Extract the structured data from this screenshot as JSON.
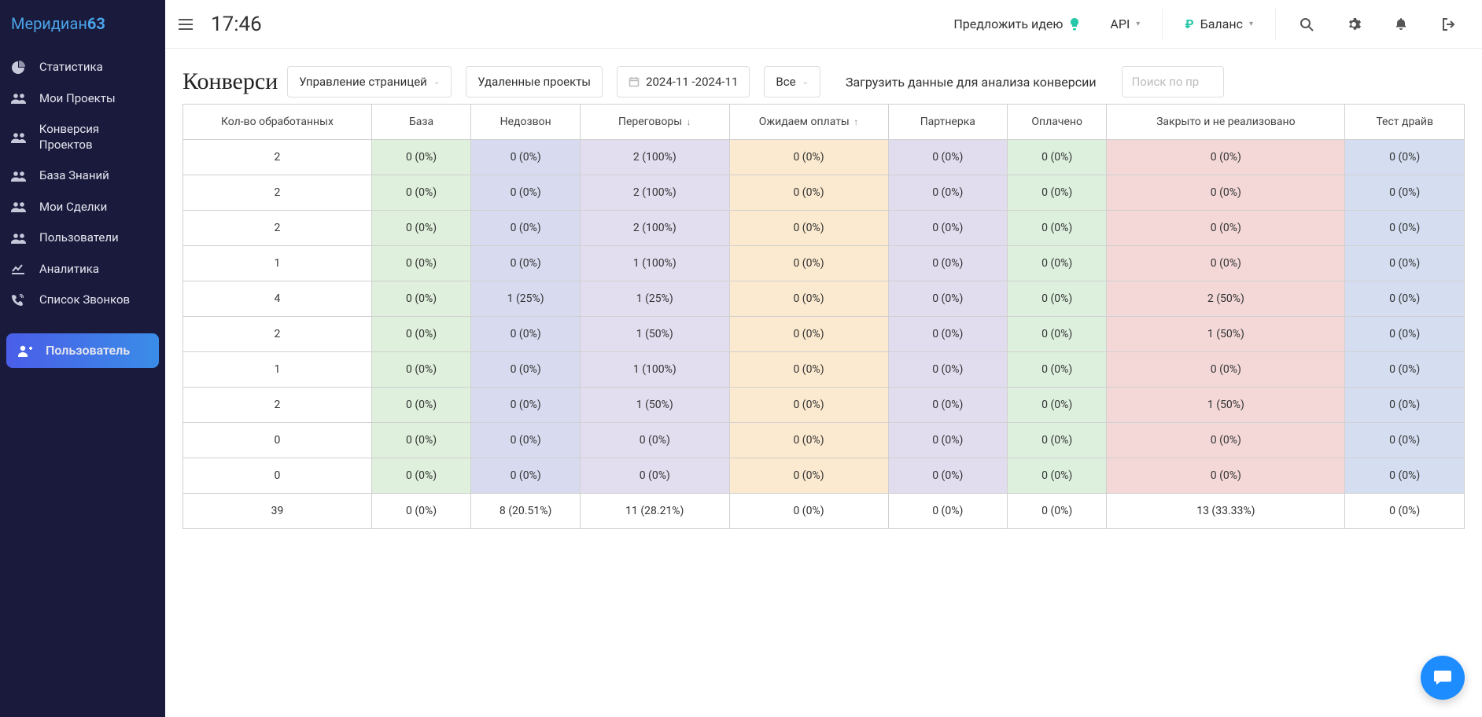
{
  "brand": {
    "part1": "Меридиан",
    "part2": "63"
  },
  "clock": "17:46",
  "topbar": {
    "suggest": "Предложить идею",
    "api": "API",
    "balance": "Баланс"
  },
  "sidebar": {
    "items": [
      {
        "icon": "pie",
        "label": "Статистика"
      },
      {
        "icon": "users",
        "label": "Мои Проекты"
      },
      {
        "icon": "users",
        "label": "Конверсия Проектов"
      },
      {
        "icon": "users",
        "label": "База Знаний"
      },
      {
        "icon": "users",
        "label": "Мои Сделки"
      },
      {
        "icon": "users",
        "label": "Пользователи"
      },
      {
        "icon": "chart",
        "label": "Аналитика"
      },
      {
        "icon": "phone",
        "label": "Список Звонков"
      }
    ],
    "pill": {
      "label": "Пользователь"
    }
  },
  "page": {
    "title_trunc": "Конверси",
    "controls": {
      "manage": "Управление страницей",
      "deleted": "Удаленные проекты",
      "date": "2024-11 -2024-11",
      "filter": "Все",
      "load": "Загрузить данные для анализа конверсии",
      "search_placeholder": "Поиск по пр"
    }
  },
  "table": {
    "columns": [
      {
        "label": "Кол-во обработанных",
        "bg": "",
        "arrow": ""
      },
      {
        "label": "База",
        "bg": "green",
        "arrow": ""
      },
      {
        "label": "Недозвон",
        "bg": "blue",
        "arrow": ""
      },
      {
        "label": "Переговоры",
        "bg": "purple",
        "arrow": "down"
      },
      {
        "label": "Ожидаем оплаты",
        "bg": "orange",
        "arrow": "up"
      },
      {
        "label": "Партнерка",
        "bg": "lilac",
        "arrow": ""
      },
      {
        "label": "Оплачено",
        "bg": "mint",
        "arrow": ""
      },
      {
        "label": "Закрыто и не реализовано",
        "bg": "pink",
        "arrow": ""
      },
      {
        "label": "Тест драйв",
        "bg": "sky",
        "arrow": ""
      }
    ],
    "rows": [
      [
        "2",
        "0 (0%)",
        "0 (0%)",
        "2 (100%)",
        "0 (0%)",
        "0 (0%)",
        "0 (0%)",
        "0 (0%)",
        "0 (0%)"
      ],
      [
        "2",
        "0 (0%)",
        "0 (0%)",
        "2 (100%)",
        "0 (0%)",
        "0 (0%)",
        "0 (0%)",
        "0 (0%)",
        "0 (0%)"
      ],
      [
        "2",
        "0 (0%)",
        "0 (0%)",
        "2 (100%)",
        "0 (0%)",
        "0 (0%)",
        "0 (0%)",
        "0 (0%)",
        "0 (0%)"
      ],
      [
        "1",
        "0 (0%)",
        "0 (0%)",
        "1 (100%)",
        "0 (0%)",
        "0 (0%)",
        "0 (0%)",
        "0 (0%)",
        "0 (0%)"
      ],
      [
        "4",
        "0 (0%)",
        "1 (25%)",
        "1 (25%)",
        "0 (0%)",
        "0 (0%)",
        "0 (0%)",
        "2 (50%)",
        "0 (0%)"
      ],
      [
        "2",
        "0 (0%)",
        "0 (0%)",
        "1 (50%)",
        "0 (0%)",
        "0 (0%)",
        "0 (0%)",
        "1 (50%)",
        "0 (0%)"
      ],
      [
        "1",
        "0 (0%)",
        "0 (0%)",
        "1 (100%)",
        "0 (0%)",
        "0 (0%)",
        "0 (0%)",
        "0 (0%)",
        "0 (0%)"
      ],
      [
        "2",
        "0 (0%)",
        "0 (0%)",
        "1 (50%)",
        "0 (0%)",
        "0 (0%)",
        "0 (0%)",
        "1 (50%)",
        "0 (0%)"
      ],
      [
        "0",
        "0 (0%)",
        "0 (0%)",
        "0 (0%)",
        "0 (0%)",
        "0 (0%)",
        "0 (0%)",
        "0 (0%)",
        "0 (0%)"
      ],
      [
        "0",
        "0 (0%)",
        "0 (0%)",
        "0 (0%)",
        "0 (0%)",
        "0 (0%)",
        "0 (0%)",
        "0 (0%)",
        "0 (0%)"
      ]
    ],
    "totals": [
      "39",
      "0 (0%)",
      "8 (20.51%)",
      "11 (28.21%)",
      "0 (0%)",
      "0 (0%)",
      "0 (0%)",
      "13 (33.33%)",
      "0 (0%)"
    ]
  },
  "colors": {
    "green": "#dff1dc",
    "blue": "#d8dbf0",
    "purple": "#e3deef",
    "orange": "#fbeacf",
    "lilac": "#e1ddef",
    "mint": "#ddf0de",
    "pink": "#f4d8d8",
    "sky": "#d5def1"
  }
}
